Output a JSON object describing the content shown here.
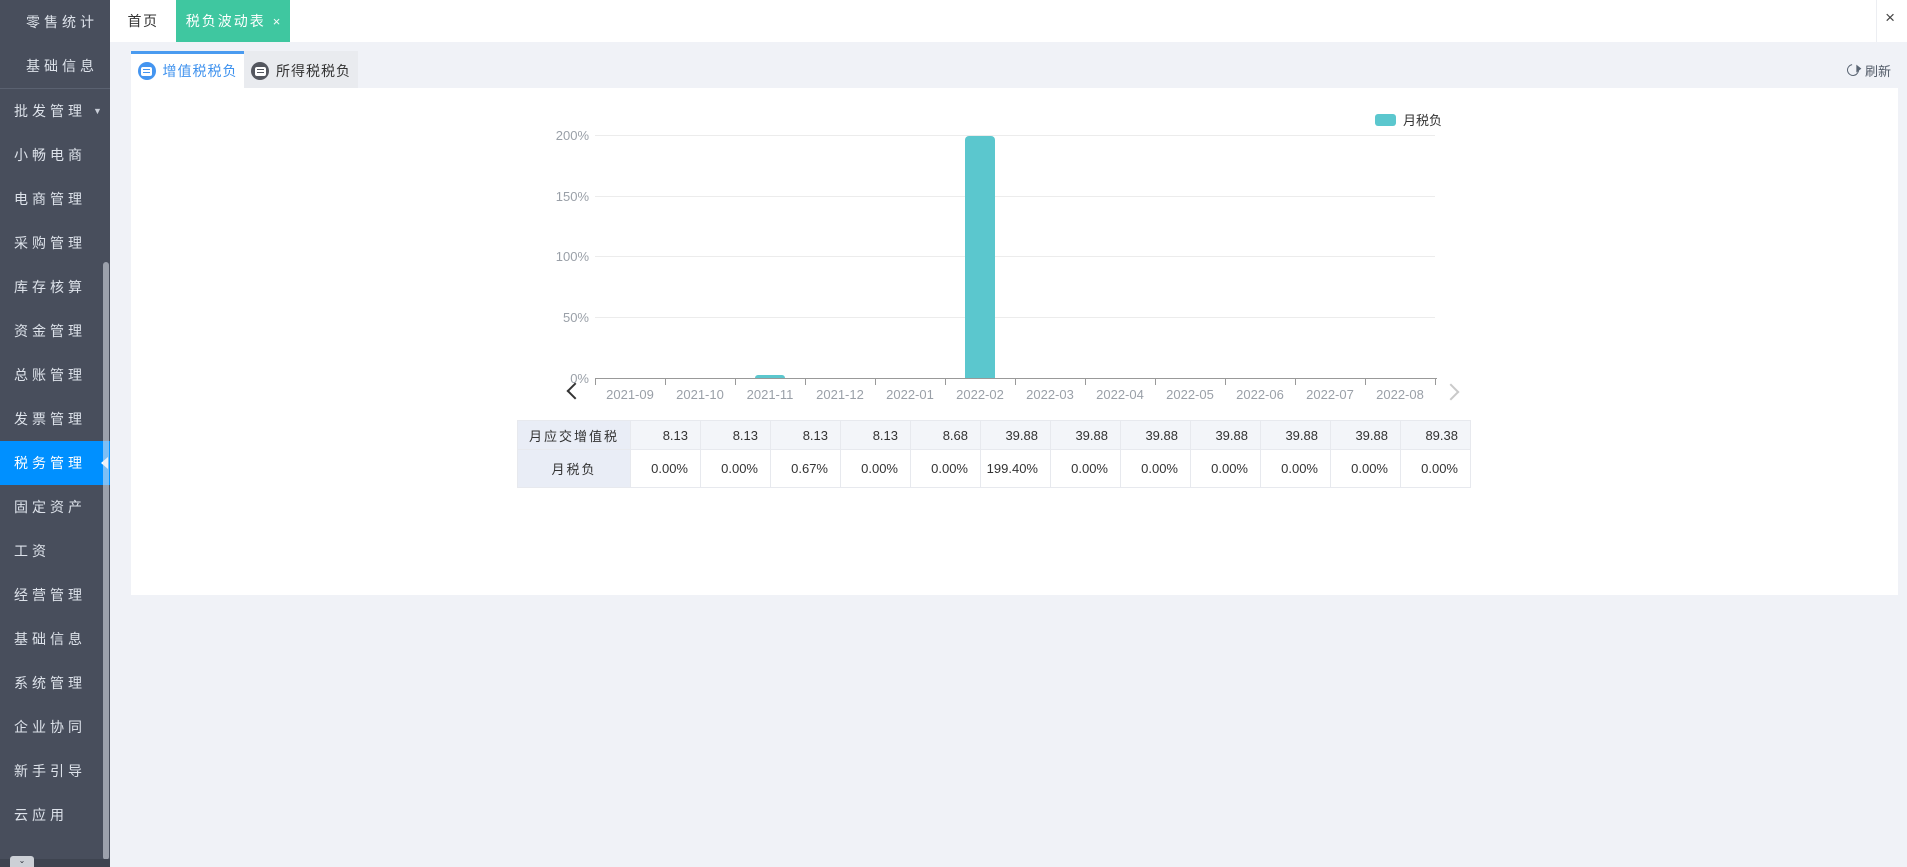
{
  "window": {
    "close_glyph": "×"
  },
  "top_tabs": {
    "home_label": "首页",
    "active_label": "税负波动表",
    "close_glyph": "×"
  },
  "sidebar": {
    "items": [
      {
        "label": "零售统计",
        "indent": true
      },
      {
        "label": "基础信息",
        "indent": true,
        "divider_after": true
      },
      {
        "label": "批发管理",
        "caret": true
      },
      {
        "label": "小畅电商"
      },
      {
        "label": "电商管理"
      },
      {
        "label": "采购管理"
      },
      {
        "label": "库存核算"
      },
      {
        "label": "资金管理"
      },
      {
        "label": "总账管理"
      },
      {
        "label": "发票管理"
      },
      {
        "label": "税务管理",
        "active": true
      },
      {
        "label": "固定资产"
      },
      {
        "label": "工资"
      },
      {
        "label": "经营管理"
      },
      {
        "label": "基础信息"
      },
      {
        "label": "系统管理"
      },
      {
        "label": "企业协同"
      },
      {
        "label": "新手引导"
      },
      {
        "label": "云应用"
      }
    ],
    "caret_glyph": "▼"
  },
  "subtabs": [
    {
      "label": "增值税税负",
      "active": true
    },
    {
      "label": "所得税税负",
      "active": false
    }
  ],
  "refresh": {
    "label": "刷新"
  },
  "chart_data": {
    "type": "bar",
    "title": "",
    "categories": [
      "2021-09",
      "2021-10",
      "2021-11",
      "2021-12",
      "2022-01",
      "2022-02",
      "2022-03",
      "2022-04",
      "2022-05",
      "2022-06",
      "2022-07",
      "2022-08"
    ],
    "series": [
      {
        "name": "月税负",
        "color": "#5bc7ce",
        "values": [
          0.0,
          0.0,
          0.67,
          0.0,
          0.0,
          199.4,
          0.0,
          0.0,
          0.0,
          0.0,
          0.0,
          0.0
        ]
      }
    ],
    "ylim": [
      0,
      200
    ],
    "yticks": [
      0,
      50,
      100,
      150,
      200
    ],
    "ytick_suffix": "%",
    "grid": true,
    "legend_position": "top-right"
  },
  "data_table": {
    "row_headers": [
      "月应交增值税",
      "月税负"
    ],
    "rows": [
      [
        "8.13",
        "8.13",
        "8.13",
        "8.13",
        "8.68",
        "39.88",
        "39.88",
        "39.88",
        "39.88",
        "39.88",
        "39.88",
        "89.38"
      ],
      [
        "0.00%",
        "0.00%",
        "0.67%",
        "0.00%",
        "0.00%",
        "199.40%",
        "0.00%",
        "0.00%",
        "0.00%",
        "0.00%",
        "0.00%",
        "0.00%"
      ]
    ]
  }
}
